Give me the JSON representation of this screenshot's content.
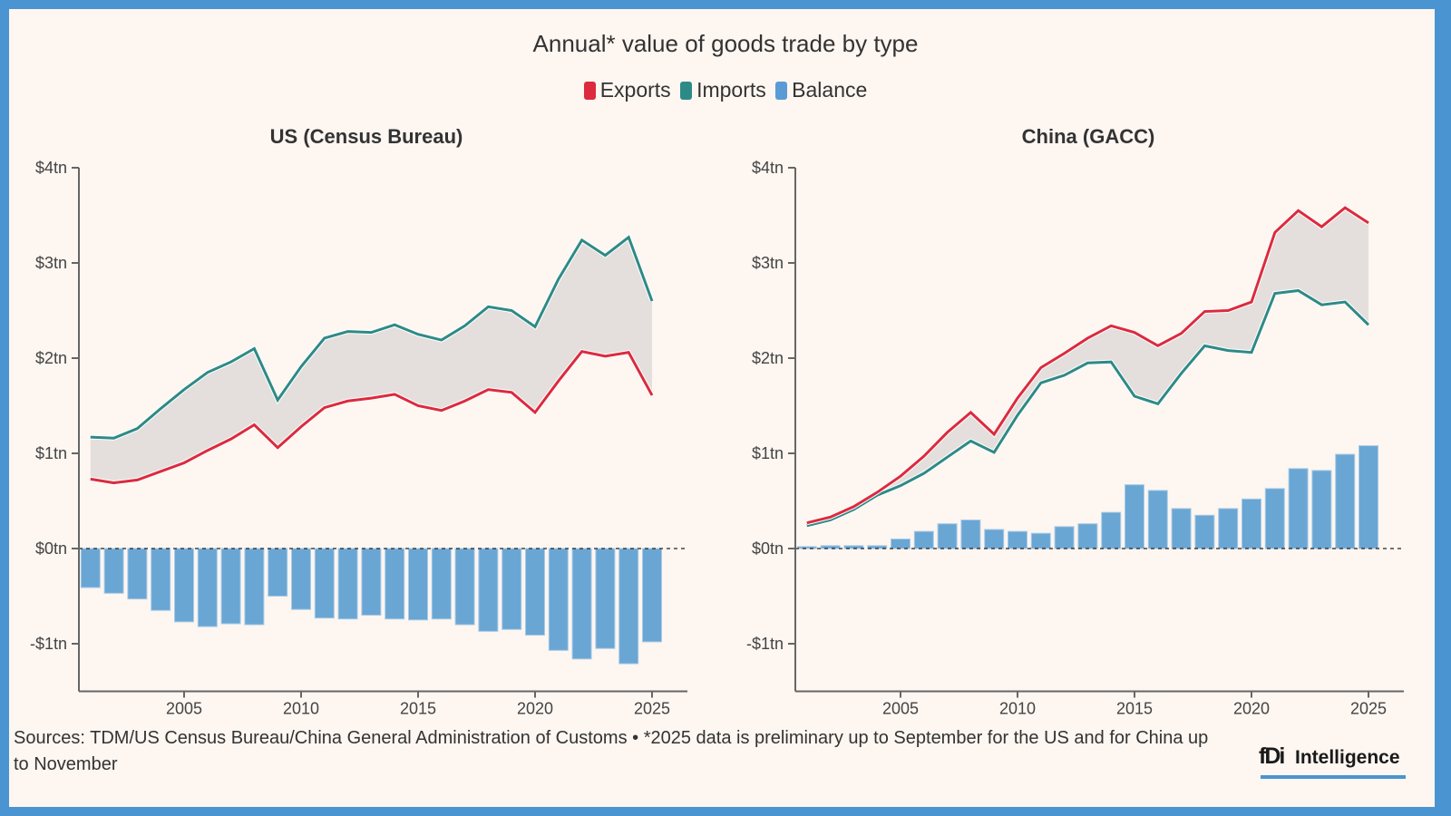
{
  "title": "Annual* value of goods trade by type",
  "legend": [
    {
      "label": "Exports",
      "color": "#dc2a3e"
    },
    {
      "label": "Imports",
      "color": "#2e8a86"
    },
    {
      "label": "Balance",
      "color": "#6aa6d4"
    }
  ],
  "footer": {
    "sources": "Sources: TDM/US Census Bureau/China General Administration of Customs • *2025 data is preliminary up to September for the US and for China up to November"
  },
  "logo": {
    "mark": "fDi",
    "text": "Intelligence"
  },
  "chart_data": [
    {
      "type": "line",
      "title": "US (Census Bureau)",
      "xlabel": "",
      "ylabel": "",
      "ylim": [
        -1.5,
        4
      ],
      "xlim": [
        2000.5,
        2026.5
      ],
      "yticks": [
        4,
        3,
        2,
        1,
        0,
        -1
      ],
      "ytick_labels": [
        "$4tn",
        "$3tn",
        "$2tn",
        "$1tn",
        "$0tn",
        "-$1tn"
      ],
      "xticks": [
        2005,
        2010,
        2015,
        2020,
        2025
      ],
      "xtick_labels": [
        "2005",
        "2010",
        "2015",
        "2020",
        "2025"
      ],
      "x": [
        2001,
        2002,
        2003,
        2004,
        2005,
        2006,
        2007,
        2008,
        2009,
        2010,
        2011,
        2012,
        2013,
        2014,
        2015,
        2016,
        2017,
        2018,
        2019,
        2020,
        2021,
        2022,
        2023,
        2024,
        2025
      ],
      "series": [
        {
          "name": "Exports",
          "kind": "line",
          "color": "#dc2a3e",
          "values": [
            0.73,
            0.69,
            0.72,
            0.81,
            0.9,
            1.03,
            1.15,
            1.3,
            1.06,
            1.28,
            1.48,
            1.55,
            1.58,
            1.62,
            1.5,
            1.45,
            1.55,
            1.67,
            1.64,
            1.43,
            1.76,
            2.07,
            2.02,
            2.06,
            1.61
          ]
        },
        {
          "name": "Imports",
          "kind": "line",
          "color": "#2e8a86",
          "values": [
            1.17,
            1.16,
            1.26,
            1.47,
            1.67,
            1.85,
            1.96,
            2.1,
            1.56,
            1.91,
            2.21,
            2.28,
            2.27,
            2.35,
            2.25,
            2.19,
            2.34,
            2.54,
            2.5,
            2.33,
            2.83,
            3.24,
            3.08,
            3.27,
            2.6
          ]
        },
        {
          "name": "Balance",
          "kind": "bar",
          "color": "#6aa6d4",
          "values": [
            -0.41,
            -0.47,
            -0.53,
            -0.65,
            -0.77,
            -0.82,
            -0.79,
            -0.8,
            -0.5,
            -0.64,
            -0.73,
            -0.74,
            -0.7,
            -0.74,
            -0.75,
            -0.74,
            -0.8,
            -0.87,
            -0.85,
            -0.91,
            -1.07,
            -1.16,
            -1.05,
            -1.21,
            -0.98
          ]
        }
      ],
      "grid": false,
      "zero_line": "dashed"
    },
    {
      "type": "line",
      "title": "China (GACC)",
      "xlabel": "",
      "ylabel": "",
      "ylim": [
        -1.5,
        4
      ],
      "xlim": [
        2000.5,
        2026.5
      ],
      "yticks": [
        4,
        3,
        2,
        1,
        0,
        -1
      ],
      "ytick_labels": [
        "$4tn",
        "$3tn",
        "$2tn",
        "$1tn",
        "$0tn",
        "-$1tn"
      ],
      "xticks": [
        2005,
        2010,
        2015,
        2020,
        2025
      ],
      "xtick_labels": [
        "2005",
        "2010",
        "2015",
        "2020",
        "2025"
      ],
      "x": [
        2001,
        2002,
        2003,
        2004,
        2005,
        2006,
        2007,
        2008,
        2009,
        2010,
        2011,
        2012,
        2013,
        2014,
        2015,
        2016,
        2017,
        2018,
        2019,
        2020,
        2021,
        2022,
        2023,
        2024,
        2025
      ],
      "series": [
        {
          "name": "Exports",
          "kind": "line",
          "color": "#dc2a3e",
          "values": [
            0.27,
            0.33,
            0.44,
            0.59,
            0.76,
            0.97,
            1.22,
            1.43,
            1.2,
            1.58,
            1.9,
            2.05,
            2.21,
            2.34,
            2.27,
            2.13,
            2.26,
            2.49,
            2.5,
            2.59,
            3.32,
            3.55,
            3.38,
            3.58,
            3.42
          ]
        },
        {
          "name": "Imports",
          "kind": "line",
          "color": "#2e8a86",
          "values": [
            0.24,
            0.3,
            0.41,
            0.56,
            0.66,
            0.79,
            0.96,
            1.13,
            1.01,
            1.4,
            1.74,
            1.82,
            1.95,
            1.96,
            1.6,
            1.52,
            1.84,
            2.13,
            2.08,
            2.06,
            2.68,
            2.71,
            2.56,
            2.59,
            2.35
          ]
        },
        {
          "name": "Balance",
          "kind": "bar",
          "color": "#6aa6d4",
          "values": [
            0.02,
            0.03,
            0.03,
            0.03,
            0.1,
            0.18,
            0.26,
            0.3,
            0.2,
            0.18,
            0.16,
            0.23,
            0.26,
            0.38,
            0.67,
            0.61,
            0.42,
            0.35,
            0.42,
            0.52,
            0.63,
            0.84,
            0.82,
            0.99,
            1.08
          ]
        }
      ],
      "grid": false,
      "zero_line": "dashed"
    }
  ]
}
